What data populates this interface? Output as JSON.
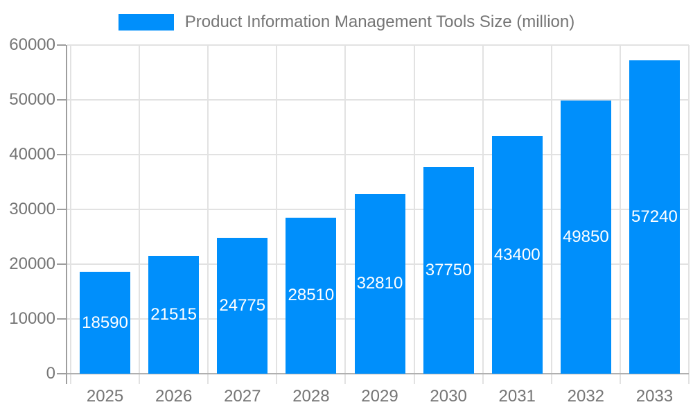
{
  "chart_data": {
    "type": "bar",
    "title": "Product Information Management Tools Size (million)",
    "categories": [
      "2025",
      "2026",
      "2027",
      "2028",
      "2029",
      "2030",
      "2031",
      "2032",
      "2033"
    ],
    "values": [
      18590,
      21515,
      24775,
      28510,
      32810,
      37750,
      43400,
      49850,
      57240
    ],
    "value_labels": [
      "18590",
      "21515",
      "24775",
      "28510",
      "32810",
      "37750",
      "43400",
      "49850",
      "57240"
    ],
    "xlabel": "",
    "ylabel": "",
    "ylim": [
      0,
      60000
    ],
    "ytick_step": 10000,
    "yticks": [
      "0",
      "10000",
      "20000",
      "30000",
      "40000",
      "50000",
      "60000"
    ],
    "grid": true,
    "legend_position": "top",
    "colors": {
      "bar": "#008FFB",
      "label": "#757575",
      "value_label": "#ffffff",
      "grid": "#e2e2e2",
      "y_axis": "#9e9e9e",
      "x_axis_line": "#b0b0b0"
    }
  }
}
